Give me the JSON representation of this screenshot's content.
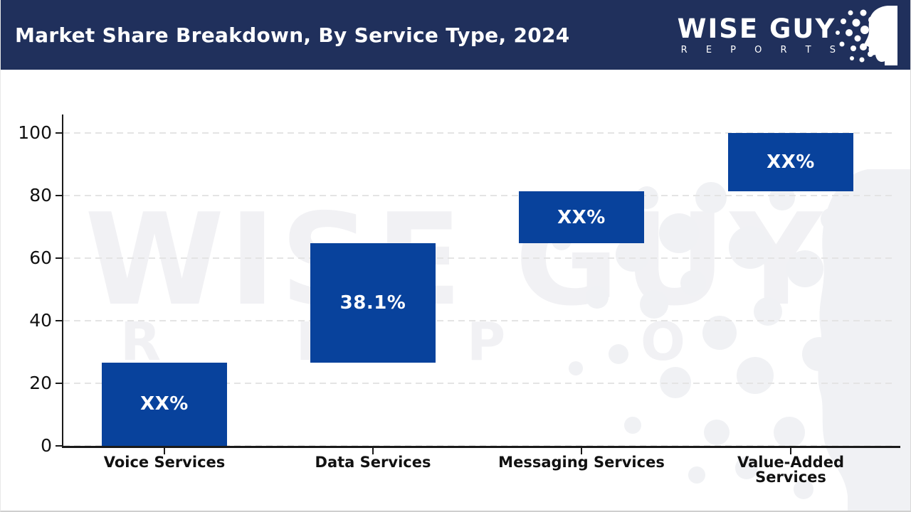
{
  "header": {
    "title": "Market Share Breakdown, By Service Type, 2024",
    "logo": {
      "line1": "WISE GUY",
      "line2": "R E P O R T S"
    }
  },
  "watermark": {
    "line1": "WISE GUY",
    "line2": "R E P O R T S"
  },
  "colors": {
    "header_bg": "#20305c",
    "bar": "#08429c",
    "bar_label": "#ffffff",
    "grid": "#e4e4e4",
    "axis": "#1a1a1a",
    "tick_text": "#111111",
    "watermark": "#f1f1f4"
  },
  "chart_data": {
    "type": "bar",
    "subtype": "waterfall",
    "title": "Market Share Breakdown, By Service Type, 2024",
    "categories": [
      "Voice Services",
      "Data Services",
      "Messaging Services",
      "Value-Added\nServices"
    ],
    "segments": [
      {
        "category": "Voice Services",
        "start": 0,
        "end": 26.7,
        "value": 26.7,
        "label": "XX%"
      },
      {
        "category": "Data Services",
        "start": 26.7,
        "end": 64.8,
        "value": 38.1,
        "label": "38.1%"
      },
      {
        "category": "Messaging Services",
        "start": 64.8,
        "end": 81.3,
        "value": 16.5,
        "label": "XX%"
      },
      {
        "category": "Value-Added Services",
        "start": 81.3,
        "end": 100,
        "value": 18.7,
        "label": "XX%"
      }
    ],
    "ylim": [
      0,
      100
    ],
    "yticks": [
      0,
      20,
      40,
      60,
      80,
      100
    ],
    "xlabel": "",
    "ylabel": "",
    "grid": "horizontal-dashed",
    "legend": "none"
  }
}
